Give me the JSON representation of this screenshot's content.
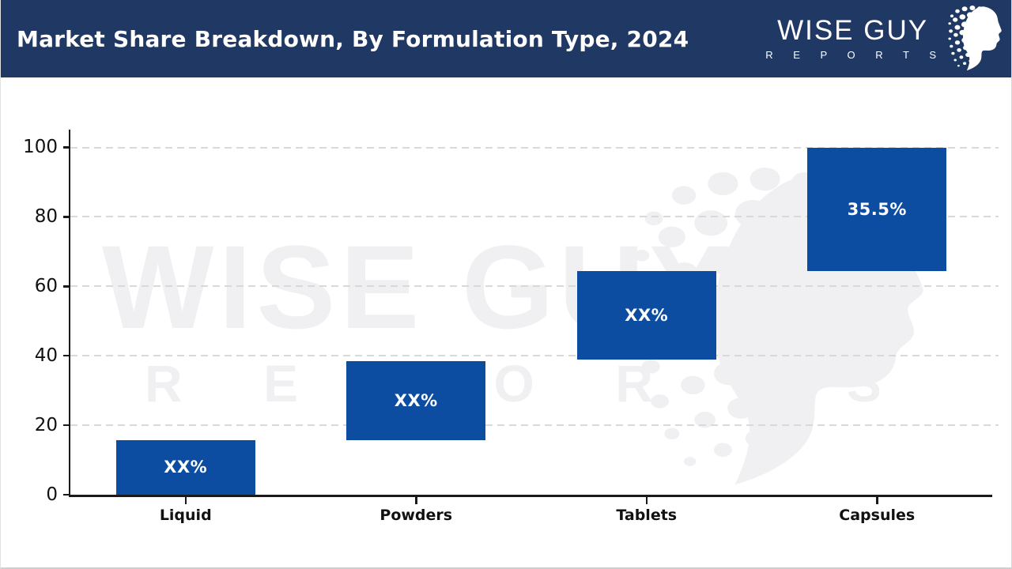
{
  "header": {
    "title": "Market Share Breakdown, By Formulation Type, 2024",
    "logo": {
      "line1": "WISE GUY",
      "line2": "R E P O R T S"
    }
  },
  "watermark": {
    "line1": "WISE GUY",
    "line2": "R E P O R T S"
  },
  "colors": {
    "header_bg": "#203864",
    "bar": "#0c4da2",
    "grid": "#d9d9d9",
    "axis": "#1a1a1a",
    "watermark": "#f0f0f3",
    "title_text": "#ffffff",
    "bar_label_text": "#ffffff"
  },
  "chart_data": {
    "type": "bar",
    "subtype": "floating-waterfall",
    "title": "Market Share Breakdown, By Formulation Type, 2024",
    "categories": [
      "Liquid",
      "Powders",
      "Tablets",
      "Capsules"
    ],
    "segments": [
      {
        "category": "Liquid",
        "from": 0,
        "to": 15.8,
        "label": "XX%"
      },
      {
        "category": "Powders",
        "from": 15.8,
        "to": 38.5,
        "label": "XX%"
      },
      {
        "category": "Tablets",
        "from": 39,
        "to": 64.5,
        "label": "XX%"
      },
      {
        "category": "Capsules",
        "from": 64.5,
        "to": 100,
        "label": "35.5%"
      }
    ],
    "yticks": [
      0,
      20,
      40,
      60,
      80,
      100
    ],
    "ylim": [
      0,
      100
    ],
    "xlabel": "",
    "ylabel": "",
    "grid": "horizontal-dashed",
    "legend": "none"
  }
}
